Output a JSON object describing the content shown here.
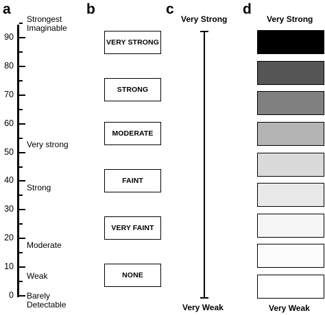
{
  "panels": {
    "a": {
      "letter": "a",
      "ticks": [
        {
          "value": 90,
          "label": "90"
        },
        {
          "value": 80,
          "label": "80"
        },
        {
          "value": 70,
          "label": "70"
        },
        {
          "value": 60,
          "label": "60"
        },
        {
          "value": 50,
          "label": "50"
        },
        {
          "value": 40,
          "label": "40"
        },
        {
          "value": 30,
          "label": "30"
        },
        {
          "value": 20,
          "label": "20"
        },
        {
          "value": 10,
          "label": "10"
        },
        {
          "value": 0,
          "label": "0"
        }
      ],
      "anchors": {
        "strongest_line1": "Strongest",
        "strongest_line2": "Imaginable",
        "very_strong": "Very strong",
        "strong": "Strong",
        "moderate": "Moderate",
        "weak": "Weak",
        "barely_line1": "Barely",
        "barely_line2": "Detectable"
      }
    },
    "b": {
      "letter": "b",
      "categories": [
        "VERY STRONG",
        "STRONG",
        "MODERATE",
        "FAINT",
        "VERY FAINT",
        "NONE"
      ]
    },
    "c": {
      "letter": "c",
      "top_label": "Very Strong",
      "bottom_label": "Very Weak"
    },
    "d": {
      "letter": "d",
      "top_label": "Very Strong",
      "bottom_label": "Very Weak",
      "swatch_colors": [
        "#000000",
        "#555555",
        "#808080",
        "#b4b4b4",
        "#dadada",
        "#e9e9e9",
        "#f6f6f6",
        "#fcfcfc",
        "#ffffff"
      ]
    }
  }
}
